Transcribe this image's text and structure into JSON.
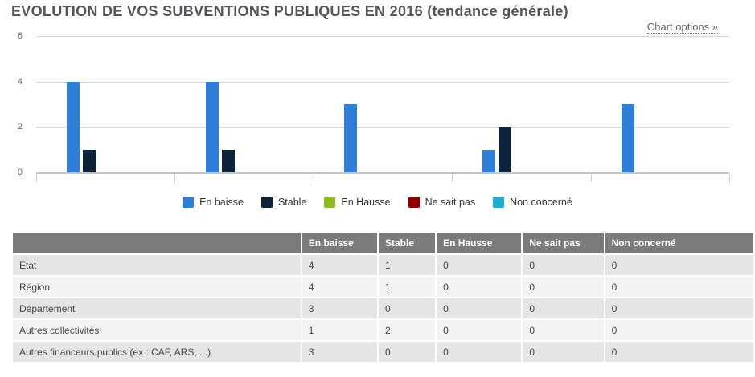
{
  "title": "EVOLUTION DE VOS SUBVENTIONS PUBLIQUES EN 2016 (tendance générale)",
  "chart_options_link": "Chart options »",
  "chart_data": {
    "type": "bar",
    "title": "EVOLUTION DE VOS SUBVENTIONS PUBLIQUES EN 2016 (tendance générale)",
    "categories": [
      "État",
      "Région",
      "Département",
      "Autres collectivités",
      "Autres financeurs publics (ex : CAF, ARS, ...)"
    ],
    "series": [
      {
        "name": "En baisse",
        "color": "#2f7ed8",
        "values": [
          4,
          4,
          3,
          1,
          3
        ]
      },
      {
        "name": "Stable",
        "color": "#0d233a",
        "values": [
          1,
          1,
          0,
          2,
          0
        ]
      },
      {
        "name": "En Hausse",
        "color": "#8bbc21",
        "values": [
          0,
          0,
          0,
          0,
          0
        ]
      },
      {
        "name": "Ne sait pas",
        "color": "#910000",
        "values": [
          0,
          0,
          0,
          0,
          0
        ]
      },
      {
        "name": "Non concerné",
        "color": "#1aadce",
        "values": [
          0,
          0,
          0,
          0,
          0
        ]
      }
    ],
    "ylim": [
      0,
      6
    ],
    "yticks": [
      0,
      2,
      4,
      6
    ],
    "xlabel": "",
    "ylabel": "",
    "grid": true,
    "x_tick_labels_hidden": true,
    "legend_position": "bottom"
  },
  "table": {
    "columns": [
      "",
      "En baisse",
      "Stable",
      "En Hausse",
      "Ne sait pas",
      "Non concerné"
    ],
    "rows": [
      {
        "label": "État",
        "values": [
          4,
          1,
          0,
          0,
          0
        ]
      },
      {
        "label": "Région",
        "values": [
          4,
          1,
          0,
          0,
          0
        ]
      },
      {
        "label": "Département",
        "values": [
          3,
          0,
          0,
          0,
          0
        ]
      },
      {
        "label": "Autres collectivités",
        "values": [
          1,
          2,
          0,
          0,
          0
        ]
      },
      {
        "label": "Autres financeurs publics (ex : CAF, ARS, ...)",
        "values": [
          3,
          0,
          0,
          0,
          0
        ]
      }
    ]
  }
}
